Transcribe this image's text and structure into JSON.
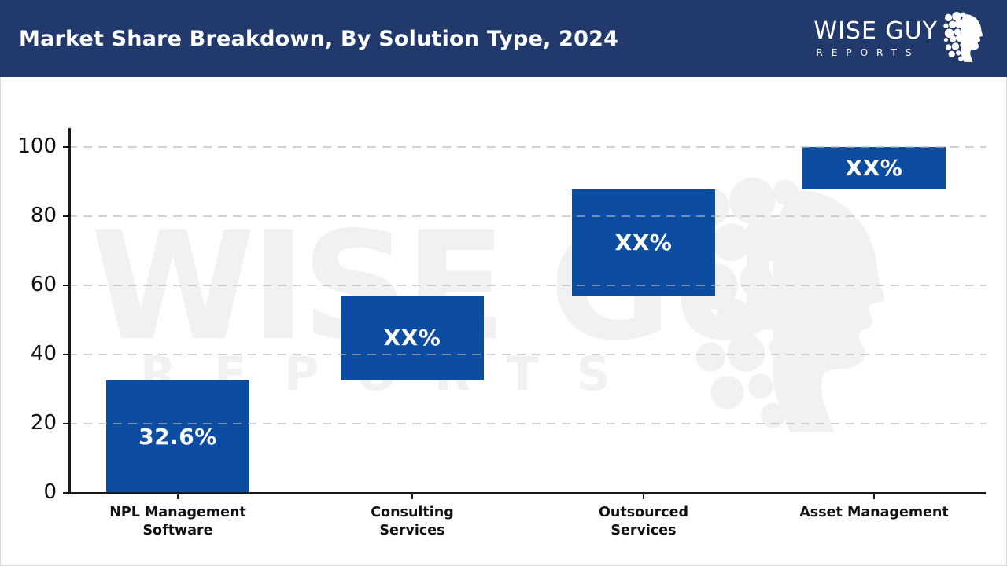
{
  "header": {
    "title": "Market Share Breakdown, By Solution Type, 2024",
    "logo": {
      "name": "WISE GUY",
      "sub": "REPORTS"
    }
  },
  "watermark": {
    "name": "WISE GUY",
    "sub": "REPORTS"
  },
  "colors": {
    "header_bg": "#22396B",
    "bar": "#0C4DA2",
    "bar_label": "#FFFFFF",
    "axis": "#1A1A1A",
    "gridline": "#B7B7B7",
    "watermark": "#F1F1F4",
    "title_text": "#FFFFFF"
  },
  "chart_data": {
    "type": "bar",
    "variant": "floating-waterfall",
    "title": "Market Share Breakdown, By Solution Type, 2024",
    "categories": [
      "NPL Management\nSoftware",
      "Consulting\nServices",
      "Outsourced\nServices",
      "Asset Management"
    ],
    "bars": [
      {
        "category": "NPL Management\nSoftware",
        "start": 0,
        "end": 32.6,
        "label": "32.6%"
      },
      {
        "category": "Consulting\nServices",
        "start": 32.6,
        "end": 57,
        "label": "XX%"
      },
      {
        "category": "Outsourced\nServices",
        "start": 57,
        "end": 87.7,
        "label": "XX%"
      },
      {
        "category": "Asset Management",
        "start": 88,
        "end": 100,
        "label": "XX%"
      }
    ],
    "xlabel": "",
    "ylabel": "",
    "y_ticks": [
      0,
      20,
      40,
      60,
      80,
      100
    ],
    "ylim": [
      0,
      105
    ],
    "grid": {
      "horizontal": true,
      "style": "dashed"
    },
    "legend": null,
    "bar_color": "#0C4DA2",
    "bar_label_color": "#FFFFFF"
  }
}
